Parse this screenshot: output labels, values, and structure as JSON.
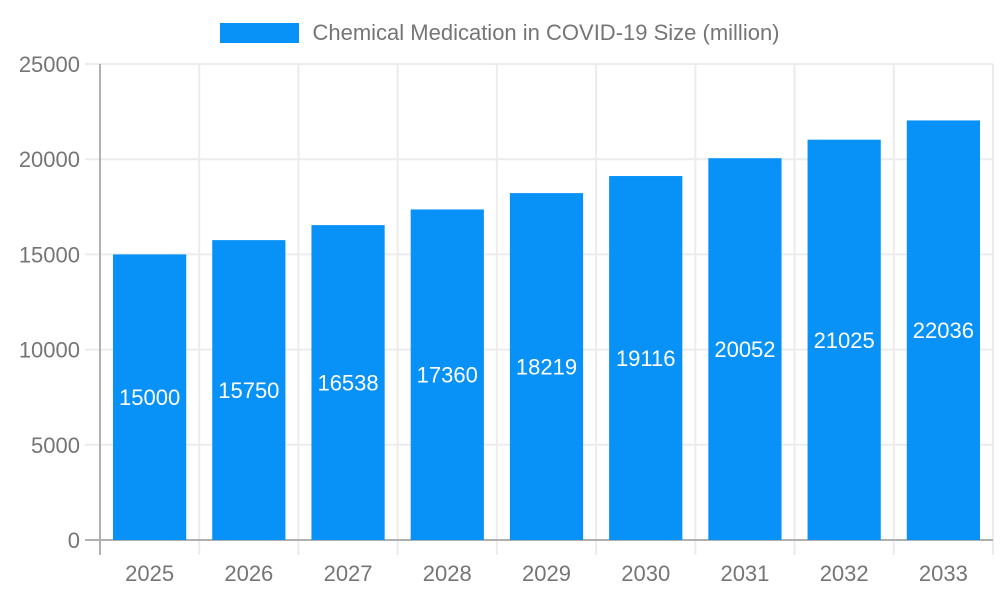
{
  "chart_data": {
    "type": "bar",
    "title": "Chemical Medication in COVID-19 Size (million)",
    "categories": [
      "2025",
      "2026",
      "2027",
      "2028",
      "2029",
      "2030",
      "2031",
      "2032",
      "2033"
    ],
    "series": [
      {
        "name": "Chemical Medication in COVID-19 Size (million)",
        "color": "#0892f8",
        "values": [
          15000,
          15750,
          16538,
          17360,
          18219,
          19116,
          20052,
          21025,
          22036
        ]
      }
    ],
    "xlabel": "",
    "ylabel": "",
    "ylim": [
      0,
      25000
    ],
    "yticks": [
      0,
      5000,
      10000,
      15000,
      20000,
      25000
    ],
    "grid": true,
    "bar_labels": true,
    "bar_label_color": "#ffffff",
    "legend_position": "top-center"
  },
  "colors": {
    "background": "#ffffff",
    "bar": "#0892f8",
    "grid": "#ececec",
    "axis": "#b0b0b0",
    "tick_label": "#757575",
    "legend_text": "#757575"
  }
}
